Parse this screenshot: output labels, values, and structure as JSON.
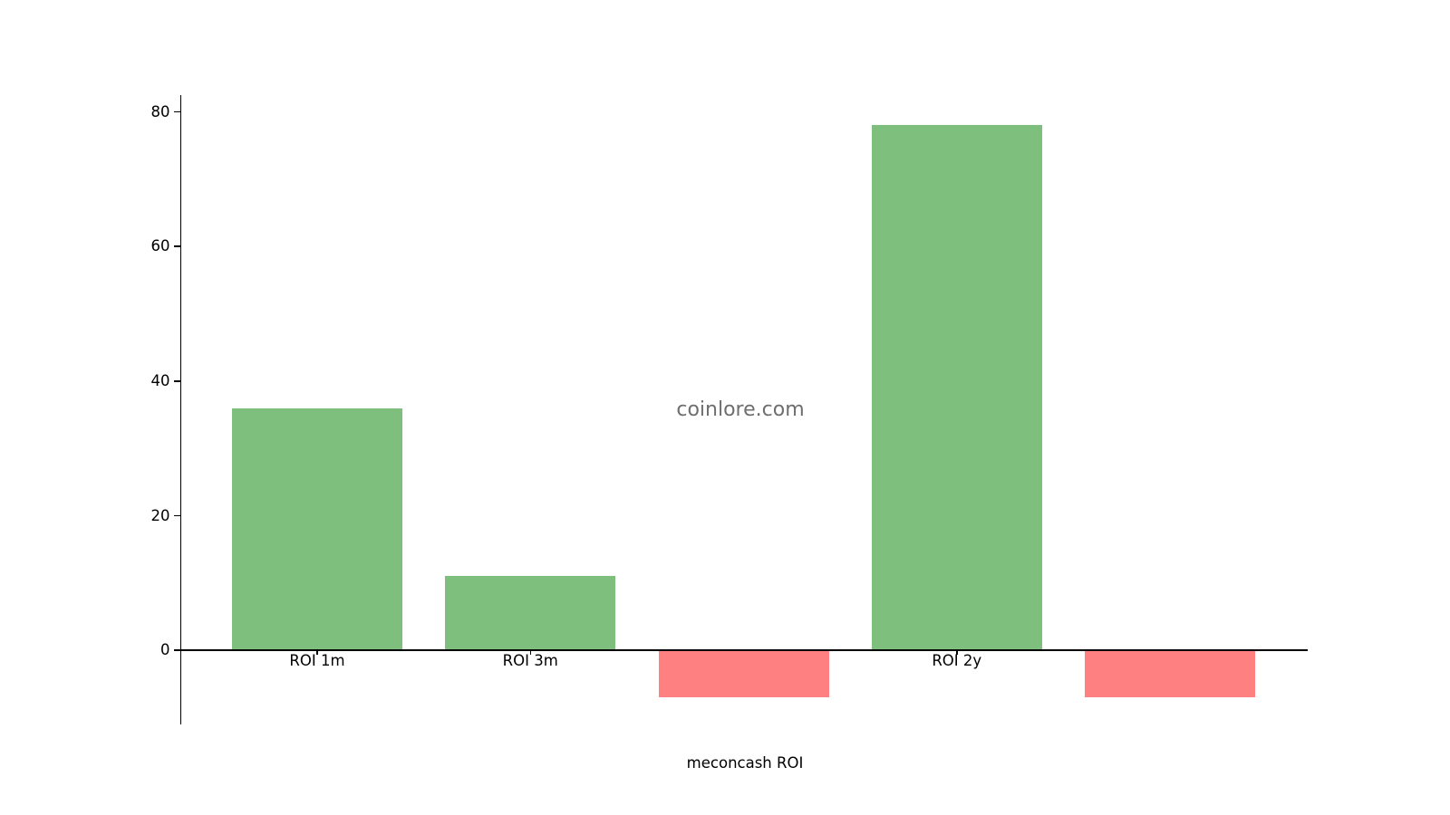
{
  "page": {
    "background_color": "#ffffff"
  },
  "chart_data": {
    "type": "bar",
    "title": "meconcash ROI",
    "title_position": "bottom-center",
    "watermark": "coinlore.com",
    "categories": [
      "ROI 1m",
      "ROI 3m",
      "",
      "ROI 2y",
      ""
    ],
    "values": [
      36,
      11,
      -7,
      78,
      -7
    ],
    "series": [
      {
        "name": "meconcash ROI",
        "values": [
          36,
          11,
          -7,
          78,
          -7
        ]
      }
    ],
    "colors": {
      "positive": "#7ebf7e",
      "negative": "#ff8080",
      "axis": "#000000",
      "tick_text": "#000000",
      "watermark_text": "#6e6e6e"
    },
    "xlabel": "meconcash ROI",
    "ylabel": "",
    "yticks": [
      0,
      20,
      40,
      60,
      80
    ],
    "ylim": [
      -11,
      82.5
    ],
    "grid": false,
    "legend": "none",
    "notes": "negative bars drawn below zero baseline cover their x tick labels"
  }
}
